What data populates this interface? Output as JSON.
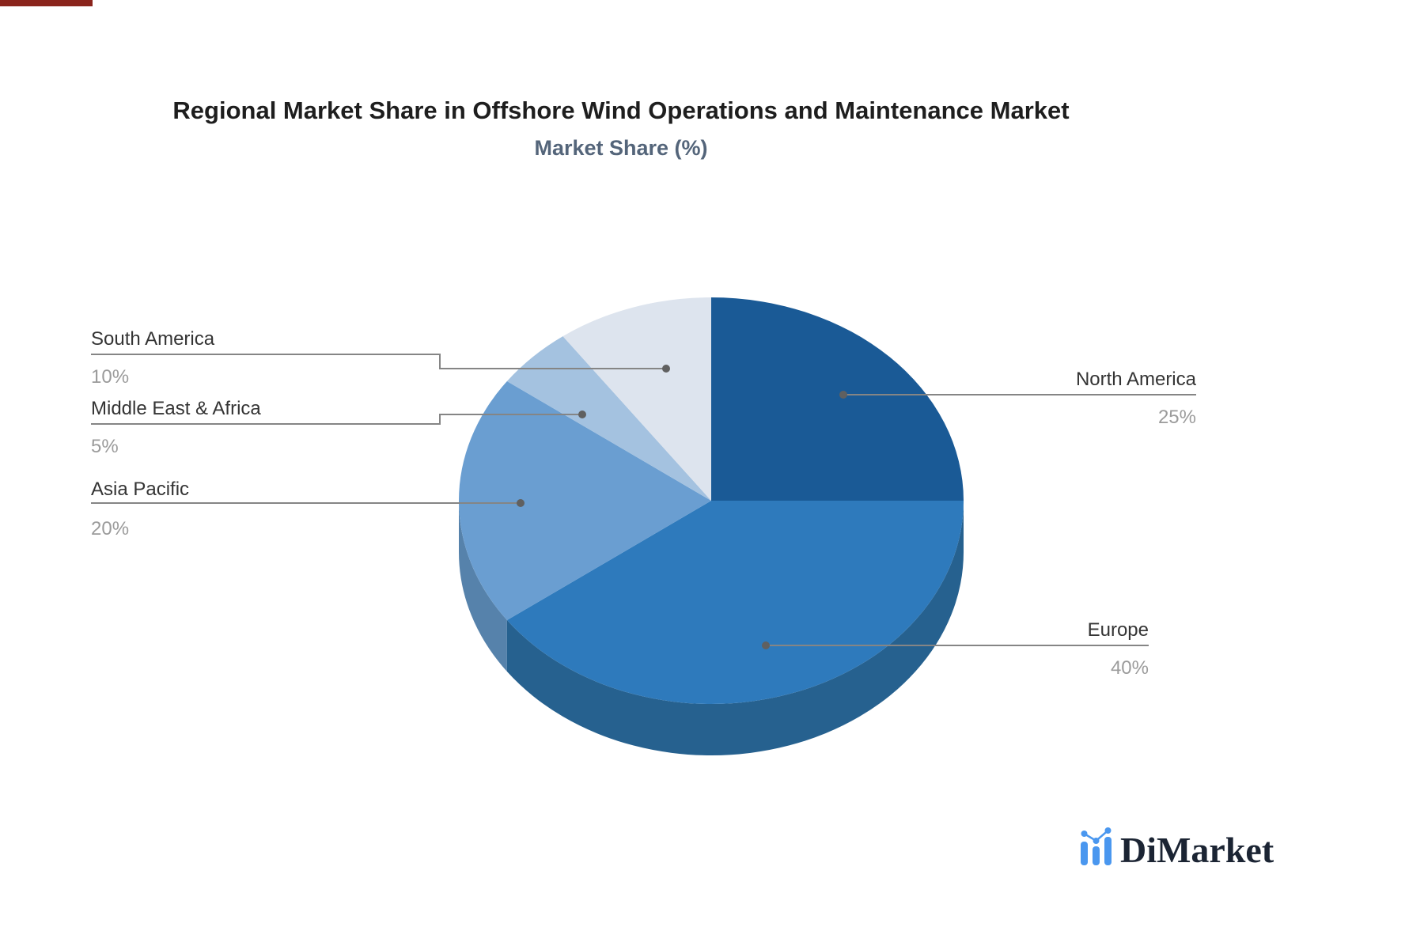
{
  "title": "Regional Market Share in Offshore Wind Operations and Maintenance Market",
  "subtitle": "Market Share (%)",
  "chart_data": {
    "type": "pie",
    "style": "3d-pie",
    "start_angle_deg": 0,
    "direction": "clockwise",
    "labels": [
      "North America",
      "Europe",
      "Asia Pacific",
      "Middle East & Africa",
      "South America"
    ],
    "values": [
      25,
      40,
      20,
      5,
      10
    ],
    "value_labels": [
      "25%",
      "40%",
      "20%",
      "5%",
      "10%"
    ],
    "unit": "%",
    "colors": [
      "#1a5a96",
      "#2e7abc",
      "#6a9ed1",
      "#a4c2e0",
      "#dde4ee"
    ],
    "side_colors": [
      "#14477a",
      "#26618f",
      "#5682ab",
      "#8aa9c9",
      "#c2cfdf"
    ],
    "leader_line_color": "#858585",
    "leader_dot_color": "#606060",
    "label_name_color": "#343434",
    "label_value_color": "#9b9b9b",
    "legend_position": "none"
  },
  "title_color": "#1e1e1e",
  "subtitle_color": "#54657a",
  "watermark": {
    "text": "DiMarket",
    "text_color": "#1b2433",
    "icon_color": "#4a97ef"
  },
  "artifact_color": "#8a241c"
}
